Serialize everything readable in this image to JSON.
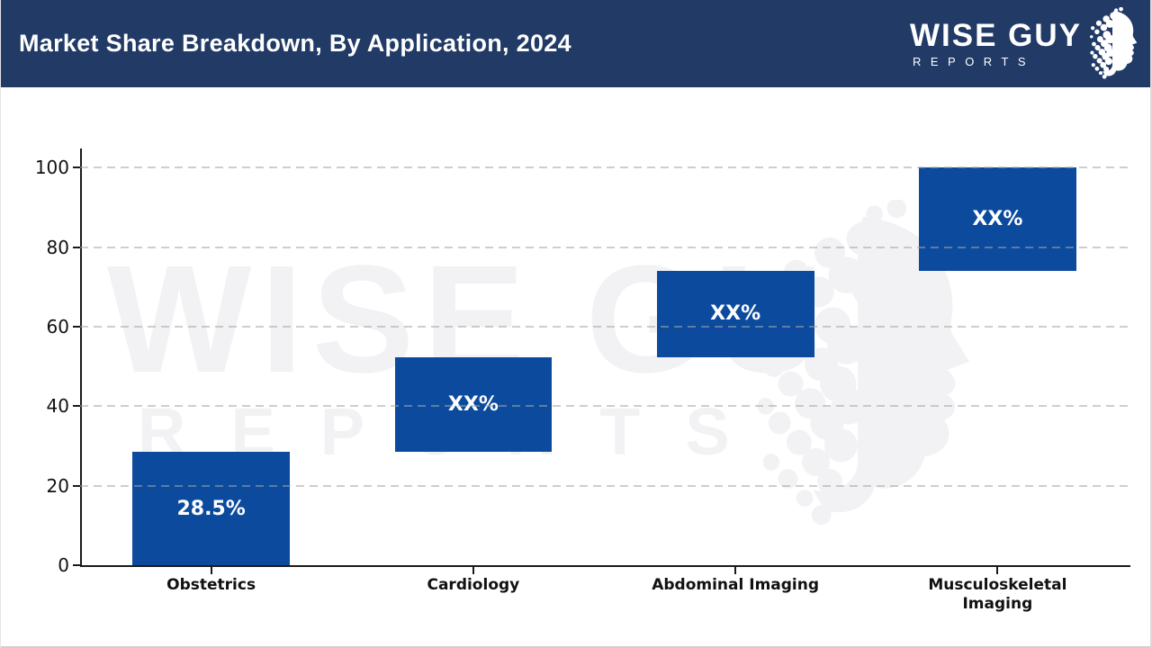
{
  "header": {
    "title": "Market Share Breakdown, By Application, 2024",
    "logo": {
      "wordmark": "WISE GUY",
      "subtext": "REPORTS"
    }
  },
  "watermark": {
    "wordmark": "WISE GUY",
    "subtext": "REPORTS"
  },
  "chart_data": {
    "type": "bar",
    "subtype": "waterfall",
    "title": "Market Share Breakdown, By Application, 2024",
    "categories": [
      "Obstetrics",
      "Cardiology",
      "Abdominal Imaging",
      "Musculoskeletal Imaging"
    ],
    "segments": [
      {
        "category": "Obstetrics",
        "start": 0,
        "end": 28.5,
        "label": "28.5%"
      },
      {
        "category": "Cardiology",
        "start": 28.5,
        "end": 52.3,
        "label": "XX%"
      },
      {
        "category": "Abdominal Imaging",
        "start": 52.3,
        "end": 74,
        "label": "XX%"
      },
      {
        "category": "Musculoskeletal Imaging",
        "start": 74,
        "end": 100,
        "label": "XX%"
      }
    ],
    "xlabel": "",
    "ylabel": "",
    "y_ticks": [
      0,
      20,
      40,
      60,
      80,
      100
    ],
    "ylim": [
      0,
      104.8
    ],
    "grid": "dashed-horizontal",
    "legend": "none",
    "bar_color": "#0c4a9e",
    "bar_label_color": "#ffffff",
    "axis_color": "#1a1a1a"
  },
  "colors": {
    "header_bg": "#213a66",
    "watermark": "#f2f2f4",
    "grid": "#bebebe"
  }
}
